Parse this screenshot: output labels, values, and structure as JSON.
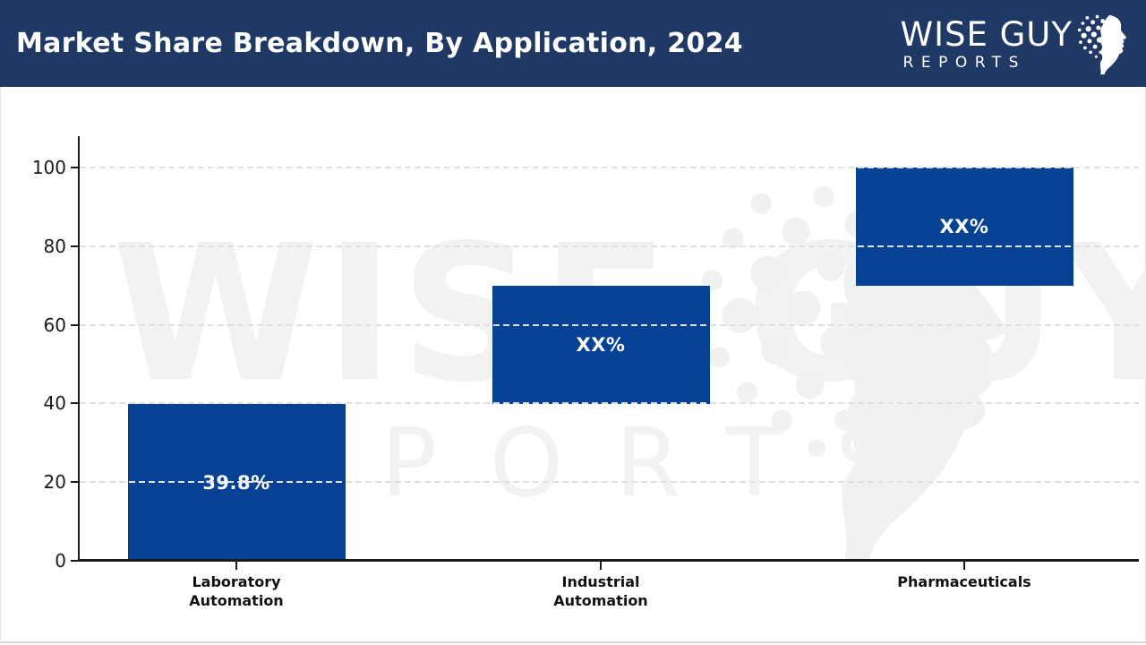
{
  "header": {
    "title": "Market Share Breakdown, By Application, 2024",
    "background_color": "#1f3864",
    "logo": {
      "wordmark": "WISE GUY",
      "subtext": "REPORTS"
    }
  },
  "watermark": {
    "wordmark": "WISE GUY",
    "subtext": "REPORTS"
  },
  "chart_data": {
    "type": "bar",
    "subtype": "segmented_breakdown",
    "title": "Market Share Breakdown, By Application, 2024",
    "year": "2024",
    "categories": [
      "Laboratory Automation",
      "Industrial Automation",
      "Pharmaceuticals"
    ],
    "category_label_lines": [
      [
        "Laboratory",
        "Automation"
      ],
      [
        "Industrial",
        "Automation"
      ],
      [
        "Pharmaceuticals"
      ]
    ],
    "series": [
      {
        "category": "Laboratory Automation",
        "start": 0,
        "end": 39.8,
        "label": "39.8%"
      },
      {
        "category": "Industrial Automation",
        "start": 39.8,
        "end": 69.9,
        "label": "XX%"
      },
      {
        "category": "Pharmaceuticals",
        "start": 69.9,
        "end": 100,
        "label": "XX%"
      }
    ],
    "ylim": [
      0,
      100
    ],
    "yticks": [
      0,
      20,
      40,
      60,
      80,
      100
    ],
    "xlabel": "",
    "ylabel": "",
    "legend": "none",
    "grid": {
      "horizontal": true,
      "style": "dashed",
      "color": "#e0e0e0",
      "above_bars": true
    },
    "bar_color": "#064294",
    "bar_label_color": "#ffffff",
    "axis_color": "#1a1a1a"
  }
}
